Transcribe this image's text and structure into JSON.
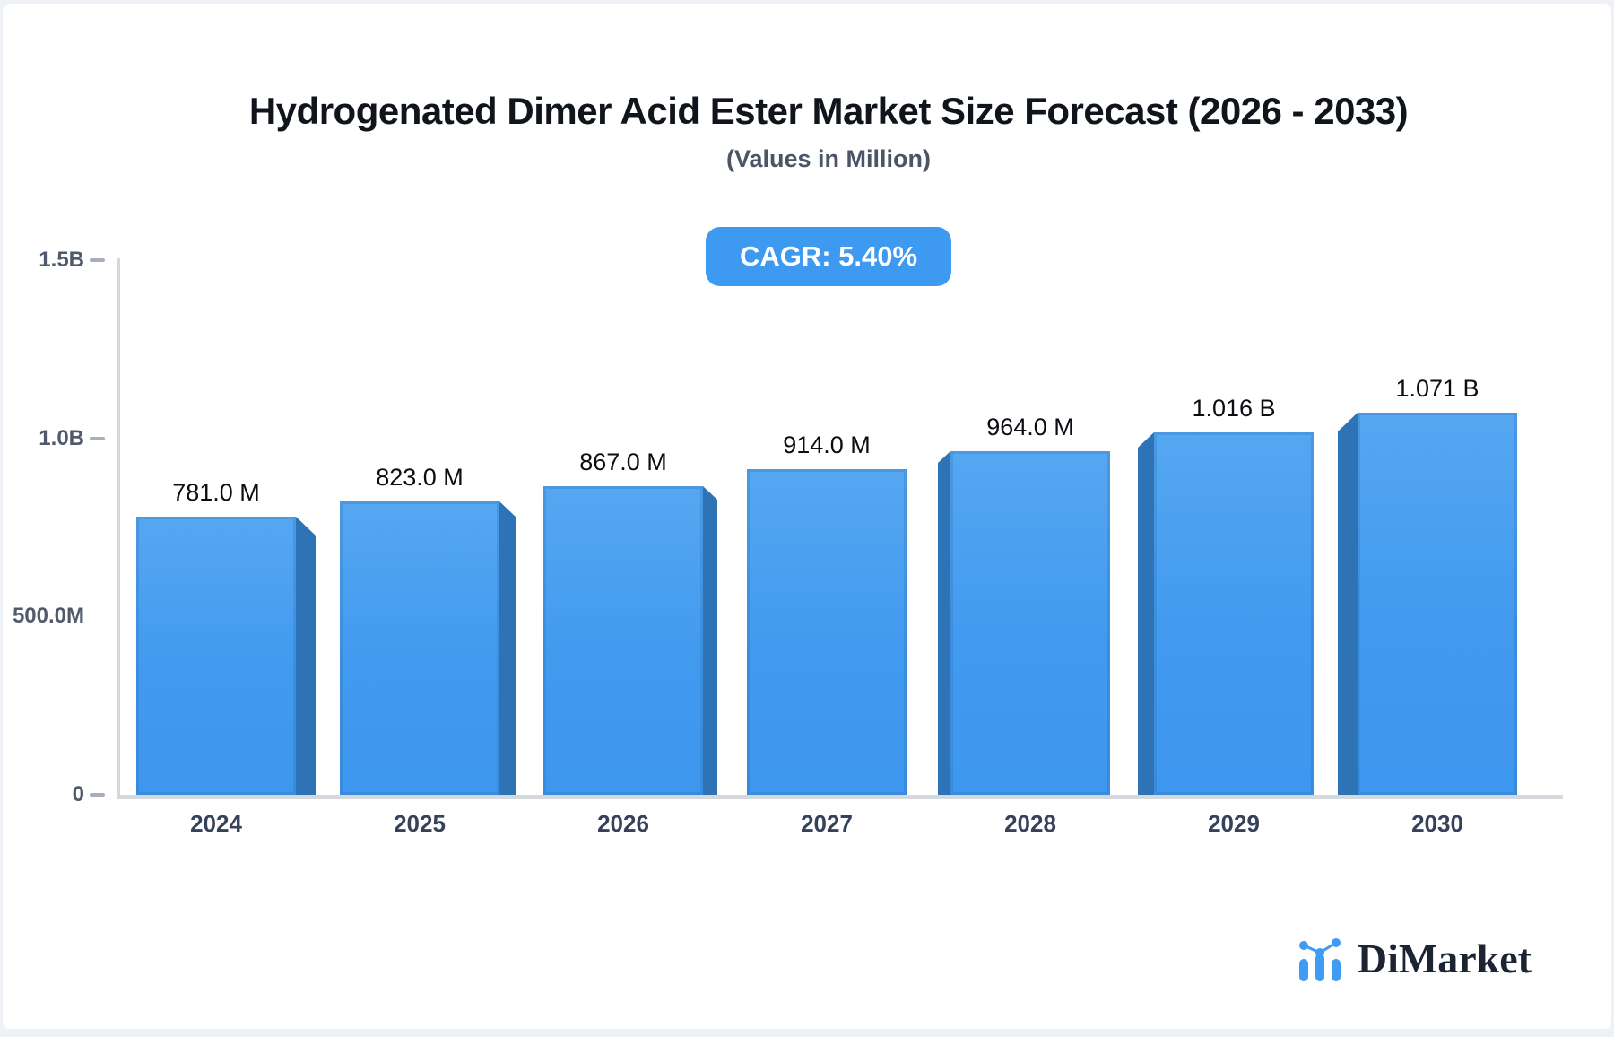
{
  "header": {
    "title": "Hydrogenated Dimer Acid Ester Market Size Forecast (2026 - 2033)",
    "subtitle": "(Values in Million)",
    "cagr_badge": "CAGR: 5.40%",
    "cagr_value": "5.40%"
  },
  "chart_data": {
    "type": "bar",
    "title": "Hydrogenated Dimer Acid Ester Market Size Forecast (2026 - 2033)",
    "subtitle": "(Values in Million)",
    "categories": [
      "2024",
      "2025",
      "2026",
      "2027",
      "2028",
      "2029",
      "2030"
    ],
    "values": [
      781,
      823,
      867,
      914,
      964,
      1016,
      1071
    ],
    "value_labels": [
      "781.0 M",
      "823.0 M",
      "867.0 M",
      "914.0 M",
      "964.0 M",
      "1.016 B",
      "1.071 B"
    ],
    "unit": "Million",
    "ylim": [
      0,
      1500
    ],
    "y_ticks": [
      {
        "label": "1.5B",
        "value": 1500,
        "dash": true
      },
      {
        "label": "1.0B",
        "value": 1000,
        "dash": true
      },
      {
        "label": "500.0M",
        "value": 500,
        "dash": false
      },
      {
        "label": "0",
        "value": 0,
        "dash": true
      }
    ],
    "grid": false,
    "legend": "none",
    "bar_color_top": "#55a7f1",
    "bar_color_bottom": "#3e97ee",
    "bar_side_color": "#2d73b5",
    "extrude_sides": [
      "right",
      "right",
      "right",
      "none",
      "left",
      "left",
      "left"
    ],
    "extrude_widths": [
      22,
      19,
      16,
      0,
      14,
      18,
      22
    ]
  },
  "footer": {
    "brand": "DiMarket",
    "brand_color": "#1c2434",
    "logo_icon": "bar-chart-logo-icon",
    "logo_icon_color": "#3f9bf3"
  }
}
